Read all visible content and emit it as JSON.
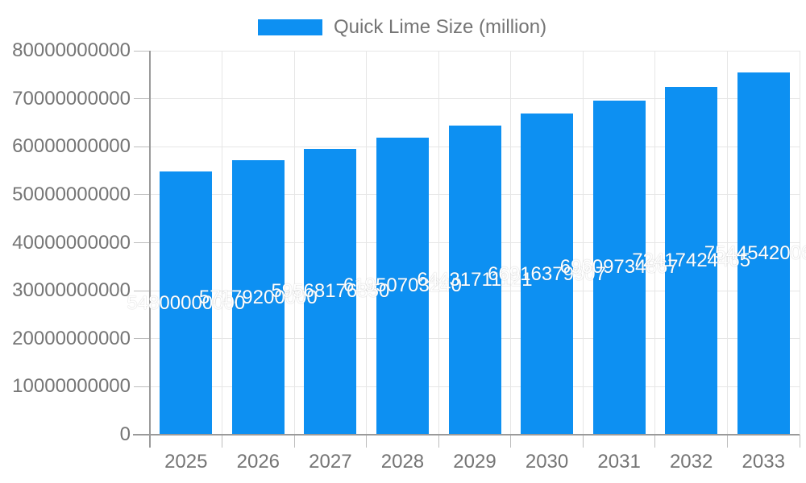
{
  "chart_data": {
    "type": "bar",
    "title": "",
    "legend": {
      "label": "Quick Lime Size (million)",
      "position": "top"
    },
    "categories": [
      "2025",
      "2026",
      "2027",
      "2028",
      "2029",
      "2030",
      "2031",
      "2032",
      "2033"
    ],
    "values": [
      54800000000,
      57179200000,
      59568176850,
      61950703240,
      64431711121,
      66916379907,
      69609734867,
      72417424465,
      75445420065
    ],
    "bar_labels": [
      "54800000000",
      "57179200000",
      "59568176850",
      "61950703240",
      "64431711121",
      "66916379907",
      "69609734867",
      "72417424465",
      "75445420065"
    ],
    "xlabel": "",
    "ylabel": "",
    "ylim": [
      0,
      80000000000
    ],
    "ytick_step": 10000000000,
    "yticks": [
      "80000000000",
      "70000000000",
      "60000000000",
      "50000000000",
      "40000000000",
      "30000000000",
      "20000000000",
      "10000000000",
      "0"
    ],
    "grid": true,
    "bar_labels_inside": true
  },
  "colors": {
    "bar": "#0d90f2",
    "axis_text": "#757575",
    "gridline": "#e6e6e6",
    "tick": "#bdbdbd",
    "axis_line": "#9a9a9a",
    "bar_label": "#ffffff"
  }
}
